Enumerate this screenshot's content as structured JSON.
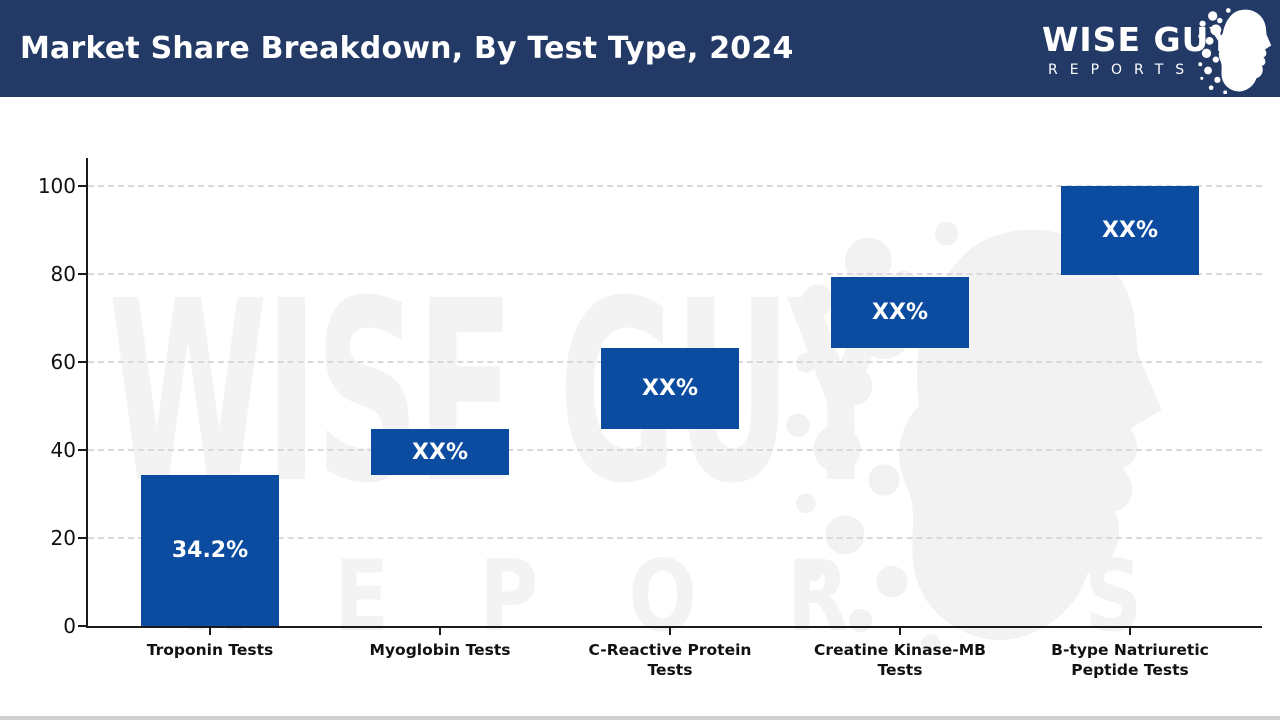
{
  "header": {
    "title": "Market Share Breakdown, By Test Type, 2024",
    "bg_color": "#233A66",
    "brand": {
      "line1": "WISE GUY",
      "line2": "REPORTS",
      "face_icon": "dotted-face-profile"
    }
  },
  "watermark": {
    "line1": "WISE GUY",
    "line2": "R E P O R T S",
    "face_icon": "dotted-face-profile"
  },
  "chart_data": {
    "type": "bar",
    "subtype": "waterfall",
    "title": "Market Share Breakdown, By Test Type, 2024",
    "xlabel": "",
    "ylabel": "",
    "ylim": [
      0,
      100
    ],
    "yticks": [
      0,
      20,
      40,
      60,
      80,
      100
    ],
    "grid": "horizontal-dashed",
    "legend": "none",
    "bar_color": "#0B4BA0",
    "bar_label_color": "#ffffff",
    "categories": [
      "Troponin Tests",
      "Myoglobin Tests",
      "C-Reactive Protein Tests",
      "Creatine Kinase-MB Tests",
      "B-type Natriuretic Peptide Tests"
    ],
    "category_lines": [
      [
        "Troponin Tests"
      ],
      [
        "Myoglobin Tests"
      ],
      [
        "C-Reactive Protein",
        "Tests"
      ],
      [
        "Creatine Kinase-MB",
        "Tests"
      ],
      [
        "B-type Natriuretic",
        "Peptide Tests"
      ]
    ],
    "segments": [
      {
        "start": 0,
        "end": 34.2,
        "label": "34.2%"
      },
      {
        "start": 34.2,
        "end": 44.7,
        "label": "XX%"
      },
      {
        "start": 44.7,
        "end": 63.0,
        "label": "XX%"
      },
      {
        "start": 63.0,
        "end": 79.2,
        "label": "XX%"
      },
      {
        "start": 79.7,
        "end": 100,
        "label": "XX%"
      }
    ]
  }
}
